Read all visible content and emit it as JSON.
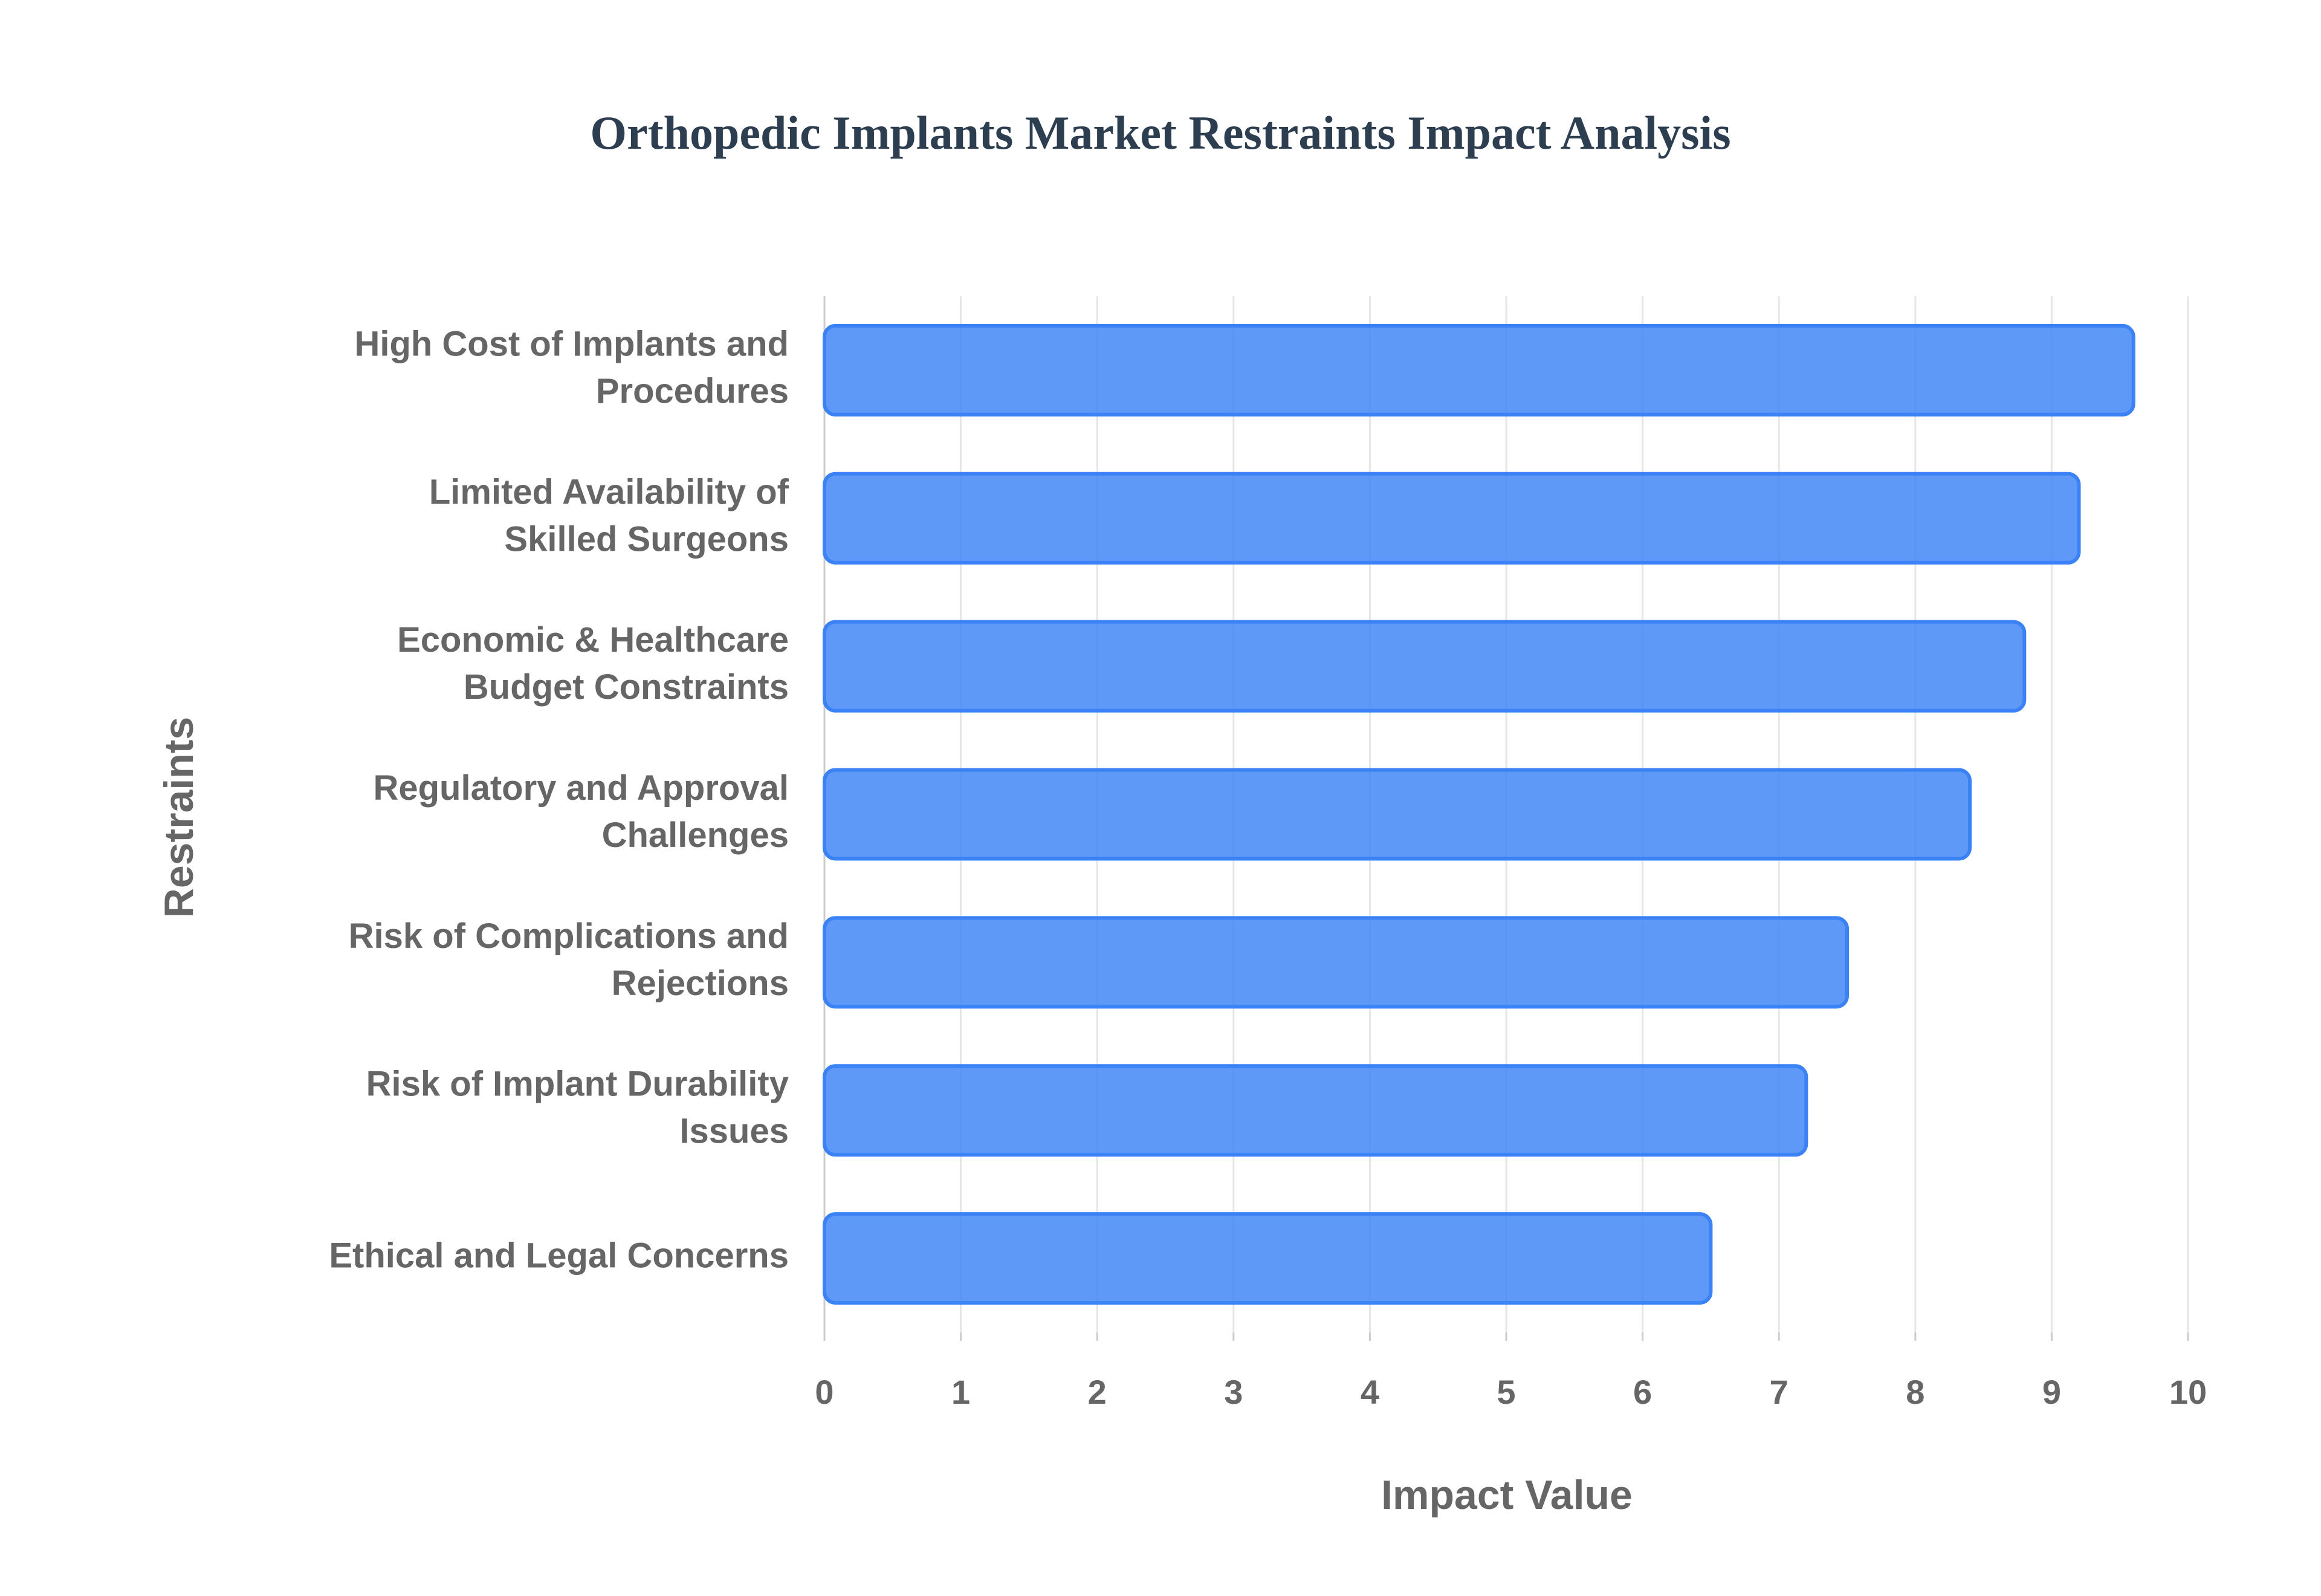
{
  "chart_data": {
    "type": "bar",
    "orientation": "horizontal",
    "title": "Orthopedic Implants Market Restraints Impact Analysis",
    "x_label": "Impact Value",
    "y_label": "Restraints",
    "categories": [
      "High Cost of Implants and Procedures",
      "Limited Availability of Skilled Surgeons",
      "Economic & Healthcare Budget Constraints",
      "Regulatory and Approval Challenges",
      "Risk of Complications and Rejections",
      "Risk of Implant Durability Issues",
      "Ethical and Legal Concerns"
    ],
    "values": [
      9.6,
      9.2,
      8.8,
      8.4,
      7.5,
      7.2,
      6.5
    ],
    "color": "#3b82f6",
    "xlim": [
      0,
      10
    ],
    "xticks": [
      0,
      1,
      2,
      3,
      4,
      5,
      6,
      7,
      8,
      9,
      10
    ],
    "grid": true
  }
}
